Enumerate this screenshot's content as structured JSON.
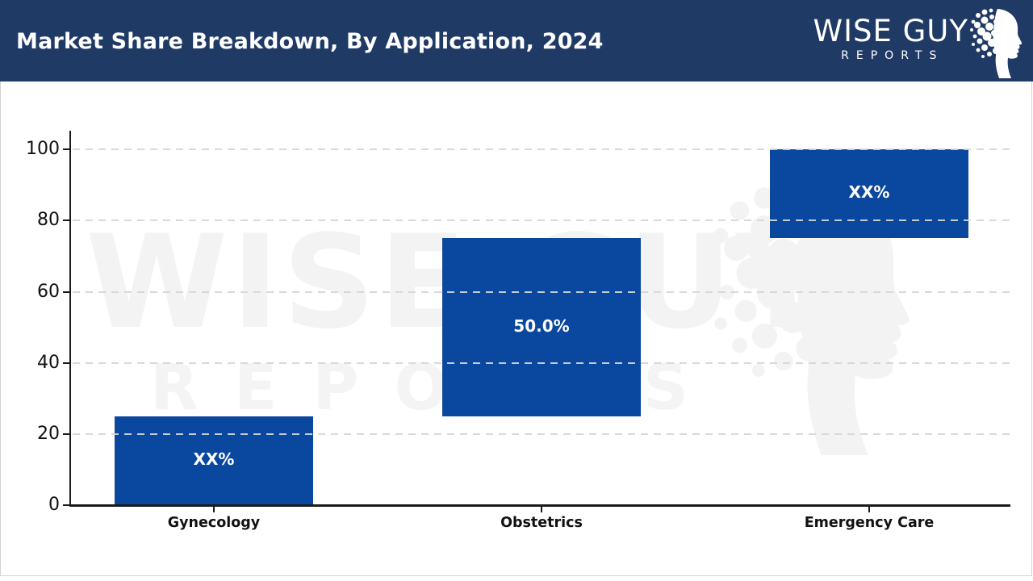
{
  "header": {
    "title": "Market Share Breakdown, By Application, 2024",
    "logo": {
      "wordmark": "WISE GUY",
      "subtext": "REPORTS"
    }
  },
  "watermark": {
    "wordmark": "WISE GUY",
    "subtext": "REPORTS"
  },
  "chart_data": {
    "type": "bar",
    "subtype": "floating-segment-bar",
    "title": "Market Share Breakdown, By Application, 2024",
    "categories": [
      "Gynecology",
      "Obstetrics",
      "Emergency Care"
    ],
    "segments": [
      {
        "category": "Gynecology",
        "start": 0,
        "end": 25,
        "label": "XX%"
      },
      {
        "category": "Obstetrics",
        "start": 25,
        "end": 75,
        "label": "50.0%"
      },
      {
        "category": "Emergency Care",
        "start": 75,
        "end": 100,
        "label": "XX%"
      }
    ],
    "ylim": [
      0,
      100
    ],
    "yticks": [
      0,
      20,
      40,
      60,
      80,
      100
    ],
    "xlabel": "",
    "ylabel": "",
    "grid": {
      "horizontal": true,
      "style": "dashed",
      "color": "#d6d6d6"
    },
    "legend": "none",
    "bar_color": "#0a479e",
    "bar_label_color": "#ffffff"
  },
  "colors": {
    "header_bg": "#203a66",
    "bar": "#0a479e",
    "axis": "#1a1a1a",
    "watermark": "#f3f3f3",
    "frame_border": "#d4d4d4"
  }
}
